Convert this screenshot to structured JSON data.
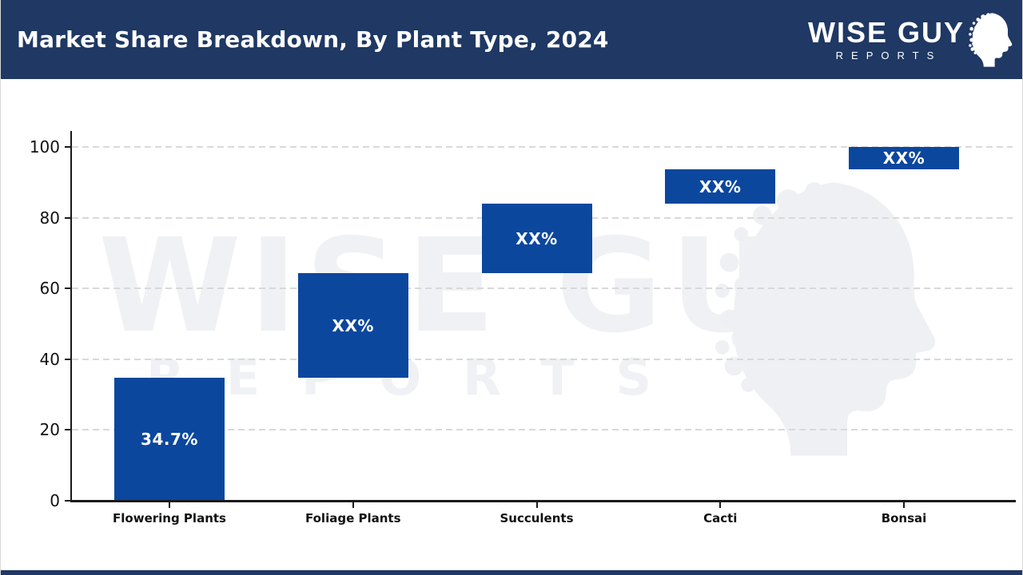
{
  "header": {
    "title": "Market Share Breakdown, By Plant Type, 2024",
    "logo": {
      "line1": "WISE GUY",
      "line2": "REPORTS"
    }
  },
  "watermark": {
    "line1": "WISE GUY",
    "line2": "REPORTS"
  },
  "colors": {
    "header_bg": "#1f3864",
    "footer_bg": "#1f3864",
    "bar": "#0c479e",
    "bar_label": "#ffffff",
    "grid": "#d9d9d9",
    "axis": "#1a1a1a",
    "watermark": "#f0f1f4"
  },
  "chart_data": {
    "type": "bar",
    "subtype": "waterfall",
    "title": "Market Share Breakdown, By Plant Type, 2024",
    "xlabel": "",
    "ylabel": "",
    "ylim": [
      0,
      105
    ],
    "y_ticks": [
      0,
      20,
      40,
      60,
      80,
      100
    ],
    "grid": "horizontal-dashed",
    "legend": "none",
    "categories": [
      "Flowering Plants",
      "Foliage Plants",
      "Succulents",
      "Cacti",
      "Bonsai"
    ],
    "segments": [
      {
        "category": "Flowering Plants",
        "start": 0,
        "end": 34.7,
        "value": 34.7,
        "label": "34.7%"
      },
      {
        "category": "Foliage Plants",
        "start": 34.7,
        "end": 64.3,
        "value": 29.6,
        "label": "XX%"
      },
      {
        "category": "Succulents",
        "start": 64.3,
        "end": 83.9,
        "value": 19.6,
        "label": "XX%"
      },
      {
        "category": "Cacti",
        "start": 83.9,
        "end": 93.6,
        "value": 9.7,
        "label": "XX%"
      },
      {
        "category": "Bonsai",
        "start": 93.6,
        "end": 100,
        "value": 6.4,
        "label": "XX%"
      }
    ]
  }
}
